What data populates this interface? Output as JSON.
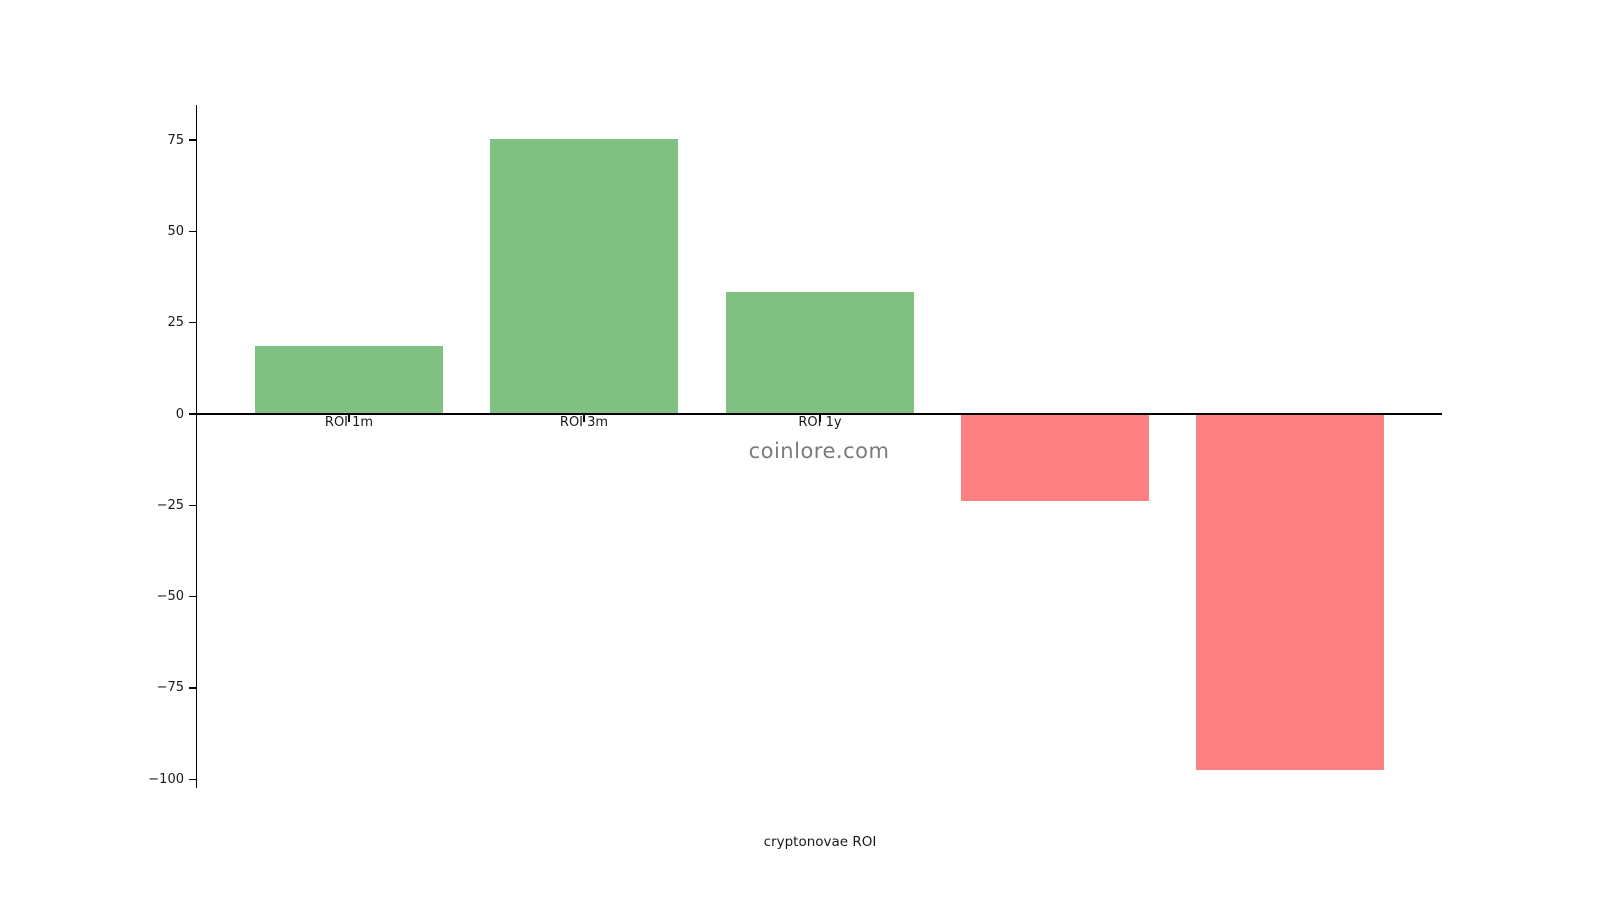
{
  "watermark": {
    "text": "coinlore.com",
    "color": "#7b7b7b"
  },
  "chart_data": {
    "type": "bar",
    "title": "cryptonovae ROI",
    "categories": [
      "ROI 1m",
      "ROI 3m",
      "ROI 1y",
      "",
      ""
    ],
    "values": [
      18.6,
      75.4,
      33.4,
      -23.5,
      -97
    ],
    "bar_colors": {
      "positive": "#80c080",
      "negative": "#ff8080"
    },
    "y_ticks": {
      "values": [
        75,
        50,
        25,
        0,
        -25,
        -50,
        -75,
        -100
      ],
      "labels": [
        "75",
        "50",
        "25",
        "0",
        "−25",
        "−50",
        "−75",
        "−100"
      ]
    },
    "ylim": [
      -102,
      85
    ],
    "xlabel": "cryptonovae ROI",
    "ylabel": "",
    "grid": false,
    "legend": false,
    "axis_color": "#000000",
    "text_color": "#1a1a1a",
    "background_color": "#ffffff"
  }
}
